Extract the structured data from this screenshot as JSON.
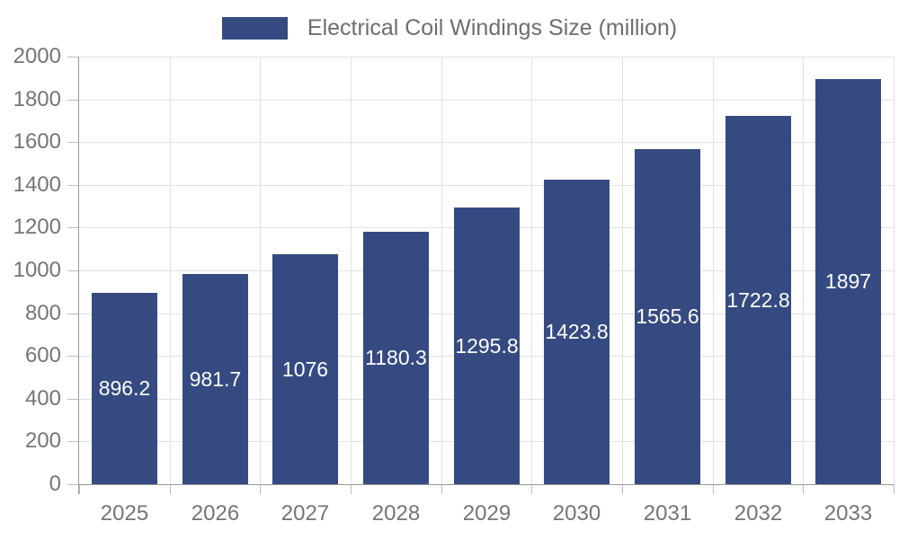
{
  "chart_data": {
    "type": "bar",
    "title": "Electrical Coil Windings Size (million)",
    "legend": {
      "label": "Electrical Coil Windings Size (million)",
      "position": "top-center"
    },
    "categories": [
      "2025",
      "2026",
      "2027",
      "2028",
      "2029",
      "2030",
      "2031",
      "2032",
      "2033"
    ],
    "values": [
      896.2,
      981.7,
      1076,
      1180.3,
      1295.8,
      1423.8,
      1565.6,
      1722.8,
      1897
    ],
    "value_labels": [
      "896.2",
      "981.7",
      "1076",
      "1180.3",
      "1295.8",
      "1423.8",
      "1565.6",
      "1722.8",
      "1897"
    ],
    "xlabel": "",
    "ylabel": "",
    "ylim": [
      0,
      2000
    ],
    "ytick_step": 200,
    "ytick_labels": [
      "0",
      "200",
      "400",
      "600",
      "800",
      "1000",
      "1200",
      "1400",
      "1600",
      "1800",
      "2000"
    ],
    "grid": true,
    "colors": {
      "bar": "#364A82",
      "value_label": "#ffffff",
      "axis_text": "#757575",
      "legend_text": "#6e6e6e",
      "grid_line": "#e2e2e2",
      "axis_line": "#999999",
      "tick_line": "#bbbbbb",
      "background": "#ffffff"
    }
  }
}
